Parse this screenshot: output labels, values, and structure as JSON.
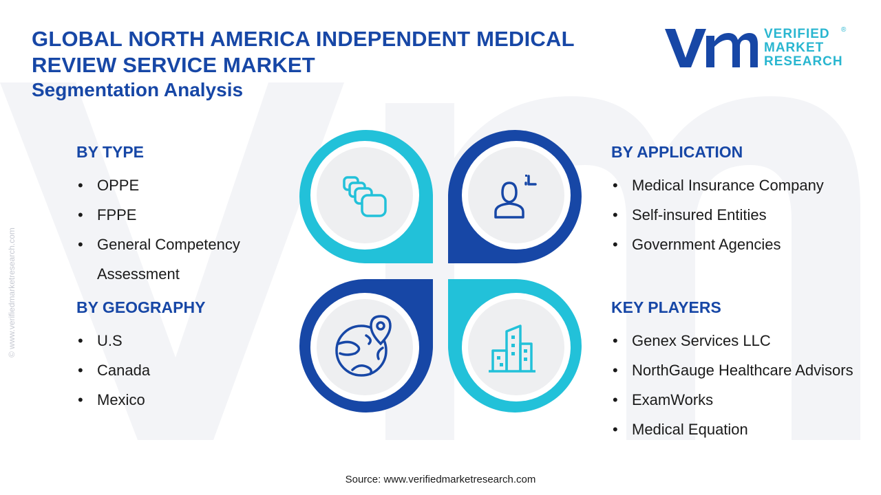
{
  "title": {
    "line1": "GLOBAL NORTH AMERICA INDEPENDENT MEDICAL",
    "line2": "REVIEW SERVICE MARKET",
    "line3": "Segmentation Analysis"
  },
  "logo": {
    "line1": "VERIFIED",
    "line2": "MARKET",
    "line3": "RESEARCH",
    "reg": "®"
  },
  "side_text": "© www.verifiedmarketresearch.com",
  "segments": {
    "type": {
      "heading": "BY TYPE",
      "items": [
        "OPPE",
        "FPPE",
        "General Competency",
        "Assessment"
      ]
    },
    "geography": {
      "heading": "BY GEOGRAPHY",
      "items": [
        "U.S",
        "Canada",
        "Mexico"
      ]
    },
    "application": {
      "heading": "BY APPLICATION",
      "items": [
        "Medical Insurance Company",
        "Self-insured Entities",
        "Government Agencies"
      ]
    },
    "players": {
      "heading": "KEY PLAYERS",
      "items": [
        "Genex Services LLC",
        "NorthGauge Healthcare Advisors",
        "ExamWorks",
        "Medical Equation"
      ]
    }
  },
  "icons": {
    "type": "stacked-cards-icon",
    "application": "user-profile-icon",
    "geography": "globe-location-icon",
    "players": "city-buildings-icon"
  },
  "colors": {
    "navy": "#1747a6",
    "cyan": "#22c1d9",
    "circle": "#eeeff1",
    "text": "#1a1a1a"
  },
  "source": "Source: www.verifiedmarketresearch.com"
}
